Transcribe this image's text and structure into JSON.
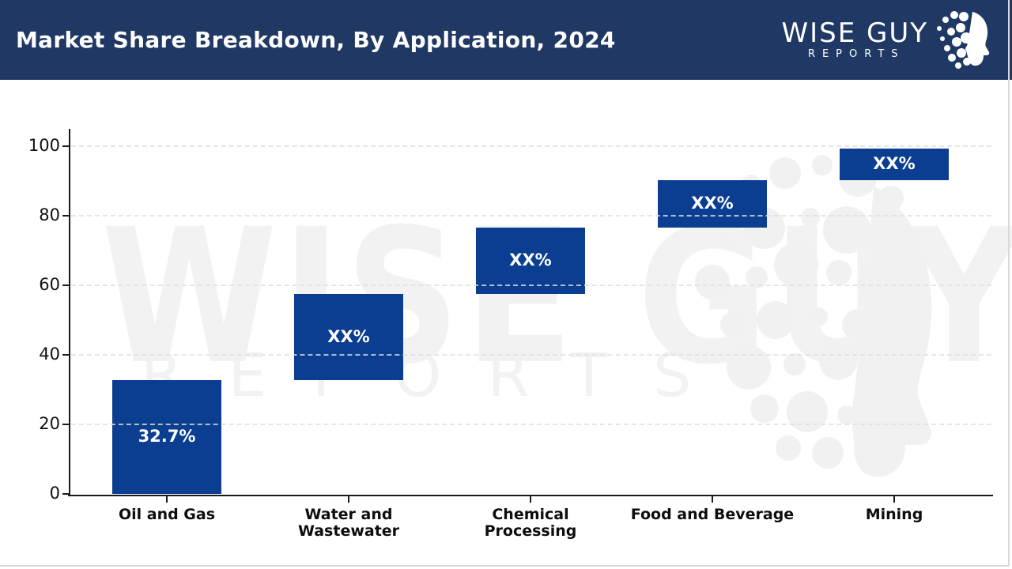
{
  "header": {
    "title": "Market Share Breakdown, By Application, 2024",
    "brand": {
      "line1": "WISE GUY",
      "line2": "REPORTS"
    },
    "bg_color": "#1f3864"
  },
  "watermark": {
    "line1": "WISE GUY",
    "line2": "REPORTS"
  },
  "chart_data": {
    "type": "bar",
    "subtype": "waterfall",
    "title": "Market Share Breakdown, By Application, 2024",
    "categories": [
      "Oil and Gas",
      "Water and Wastewater",
      "Chemical Processing",
      "Food and Beverage",
      "Mining"
    ],
    "segments": [
      {
        "category": "Oil and Gas",
        "label_lines": [
          "Oil and Gas"
        ],
        "start": 0,
        "end": 32.7,
        "value_label": "32.7%"
      },
      {
        "category": "Water and Wastewater",
        "label_lines": [
          "Water and",
          "Wastewater"
        ],
        "start": 32.7,
        "end": 57.4,
        "value_label": "XX%"
      },
      {
        "category": "Chemical Processing",
        "label_lines": [
          "Chemical",
          "Processing"
        ],
        "start": 57.4,
        "end": 76.6,
        "value_label": "XX%"
      },
      {
        "category": "Food and Beverage",
        "label_lines": [
          "Food and Beverage"
        ],
        "start": 76.6,
        "end": 90.3,
        "value_label": "XX%"
      },
      {
        "category": "Mining",
        "label_lines": [
          "Mining"
        ],
        "start": 90.3,
        "end": 99.4,
        "value_label": "XX%"
      }
    ],
    "y_ticks": [
      0,
      20,
      40,
      60,
      80,
      100
    ],
    "ylim": [
      0,
      105
    ],
    "grid": "horizontal-dashed",
    "legend": "none",
    "bar_color": "#0b3e90",
    "bar_label_color": "#ffffff"
  }
}
